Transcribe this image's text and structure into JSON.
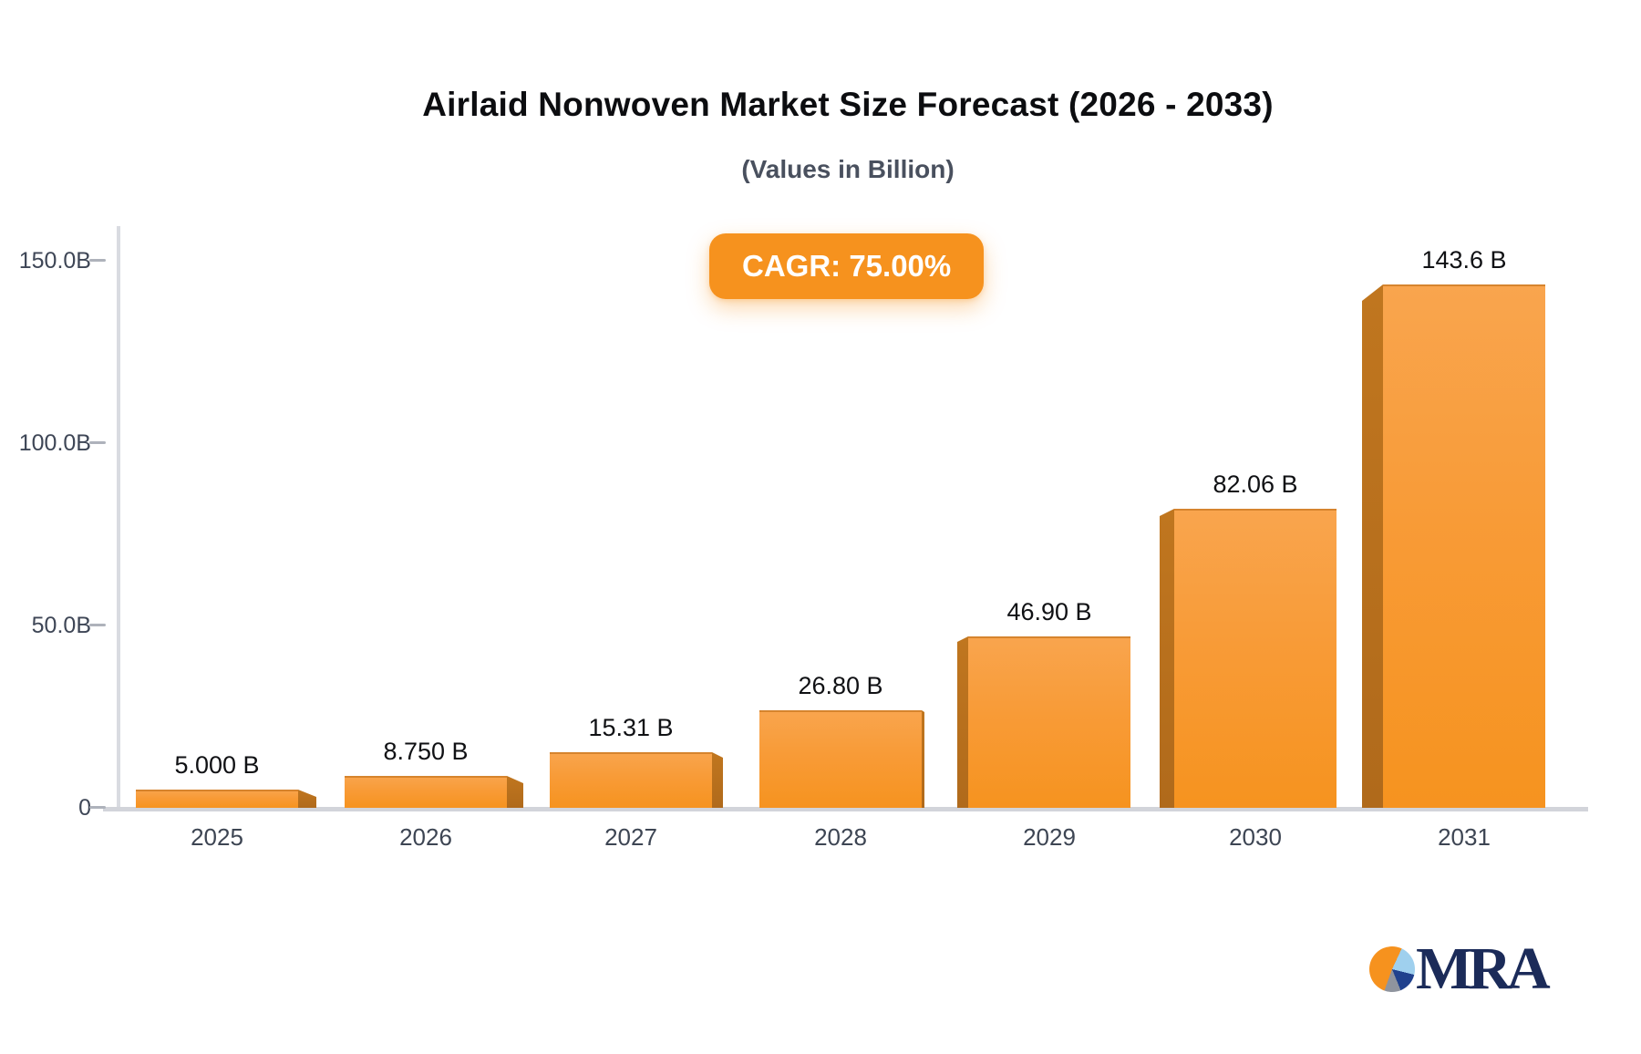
{
  "title": "Airlaid Nonwoven Market Size Forecast (2026 - 2033)",
  "subtitle": "(Values in Billion)",
  "badge": {
    "label": "CAGR: 75.00%",
    "bg_color": "#F6921E"
  },
  "chart_data": {
    "type": "bar",
    "title": "Airlaid Nonwoven Market Size Forecast (2026 - 2033)",
    "subtitle": "(Values in Billion)",
    "categories": [
      "2025",
      "2026",
      "2027",
      "2028",
      "2029",
      "2030",
      "2031"
    ],
    "values": [
      5.0,
      8.75,
      15.31,
      26.8,
      46.9,
      82.06,
      143.6
    ],
    "data_labels": [
      "5.000 B",
      "8.750 B",
      "15.31 B",
      "26.80 B",
      "46.90 B",
      "82.06 B",
      "143.6 B"
    ],
    "y_ticks": [
      {
        "value": 0,
        "label": "0"
      },
      {
        "value": 50,
        "label": "50.0B"
      },
      {
        "value": 100,
        "label": "100.0B"
      },
      {
        "value": 150,
        "label": "150.0B"
      }
    ],
    "ylim": [
      0,
      150
    ],
    "grid": false,
    "legend": "none",
    "bar_color_top": "#F9A54E",
    "bar_color_bottom": "#F6931F",
    "bar_side_color": "#B06A1B",
    "axis_color": "#D2D4DA",
    "value_label_color": "#101114",
    "tick_label_color": "#3E4656"
  },
  "logo": {
    "text": "MRA"
  }
}
